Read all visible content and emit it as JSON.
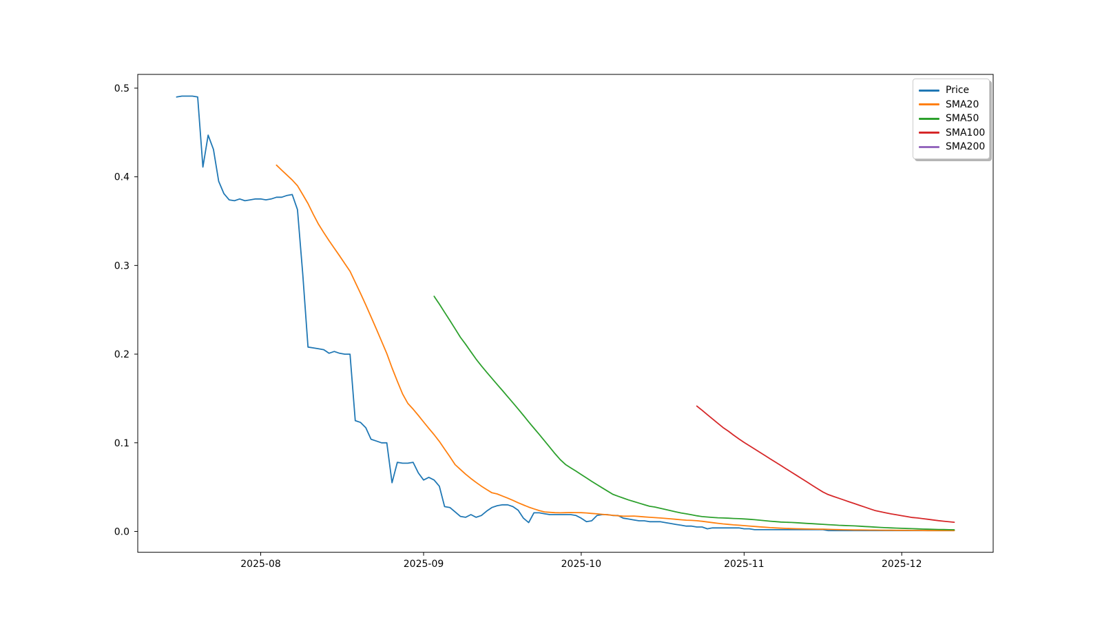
{
  "chart_data": {
    "type": "line",
    "title": "",
    "xlabel": "",
    "ylabel": "",
    "layout": {
      "background": "#ffffff",
      "grid": false,
      "legend_position": "upper right",
      "frame_color": "#000000"
    },
    "x_axis": {
      "start_date": "2025-07-16",
      "freq": "daily",
      "tick_labels": [
        "2025-08",
        "2025-09",
        "2025-10",
        "2025-11",
        "2025-12"
      ],
      "tick_day_offsets": [
        16,
        47,
        77,
        108,
        138
      ],
      "xlim_day_offsets": [
        -7.4,
        155.4
      ]
    },
    "y_axis": {
      "tick_labels": [
        "0.0",
        "0.1",
        "0.2",
        "0.3",
        "0.4",
        "0.5"
      ],
      "tick_values": [
        0.0,
        0.1,
        0.2,
        0.3,
        0.4,
        0.5
      ],
      "ylim": [
        -0.0235,
        0.5155
      ]
    },
    "series": [
      {
        "name": "Price",
        "color": "#1f77b4",
        "kind": "raw",
        "values": [
          0.49,
          0.491,
          0.491,
          0.491,
          0.49,
          0.411,
          0.447,
          0.431,
          0.395,
          0.381,
          0.374,
          0.373,
          0.375,
          0.373,
          0.374,
          0.375,
          0.375,
          0.374,
          0.375,
          0.377,
          0.377,
          0.379,
          0.38,
          0.363,
          0.29,
          0.208,
          0.207,
          0.206,
          0.205,
          0.201,
          0.203,
          0.201,
          0.2,
          0.2,
          0.125,
          0.123,
          0.117,
          0.104,
          0.102,
          0.1,
          0.1,
          0.055,
          0.078,
          0.077,
          0.077,
          0.078,
          0.066,
          0.058,
          0.061,
          0.058,
          0.051,
          0.028,
          0.027,
          0.022,
          0.017,
          0.016,
          0.019,
          0.016,
          0.018,
          0.023,
          0.027,
          0.029,
          0.03,
          0.03,
          0.028,
          0.024,
          0.015,
          0.01,
          0.021,
          0.021,
          0.02,
          0.019,
          0.019,
          0.019,
          0.019,
          0.019,
          0.018,
          0.015,
          0.011,
          0.012,
          0.018,
          0.019,
          0.019,
          0.018,
          0.018,
          0.015,
          0.014,
          0.013,
          0.012,
          0.012,
          0.011,
          0.011,
          0.011,
          0.01,
          0.009,
          0.008,
          0.007,
          0.006,
          0.006,
          0.005,
          0.005,
          0.003,
          0.004,
          0.004,
          0.004,
          0.004,
          0.004,
          0.004,
          0.003,
          0.003,
          0.002,
          0.002,
          0.002,
          0.002,
          0.002,
          0.002,
          0.002,
          0.002,
          0.002,
          0.002,
          0.002,
          0.002,
          0.002,
          0.002,
          0.001,
          0.001,
          0.001,
          0.001,
          0.001,
          0.001,
          0.001,
          0.001,
          0.001,
          0.001,
          0.001,
          0.001,
          0.001,
          0.001,
          0.001,
          0.001,
          0.001,
          0.001,
          0.001,
          0.001,
          0.001,
          0.001,
          0.001,
          0.001,
          0.001
        ]
      },
      {
        "name": "SMA20",
        "color": "#ff7f0e",
        "kind": "sma",
        "window": 20
      },
      {
        "name": "SMA50",
        "color": "#2ca02c",
        "kind": "sma",
        "window": 50
      },
      {
        "name": "SMA100",
        "color": "#d62728",
        "kind": "sma",
        "window": 100
      },
      {
        "name": "SMA200",
        "color": "#9467bd",
        "kind": "sma",
        "window": 200
      }
    ]
  }
}
